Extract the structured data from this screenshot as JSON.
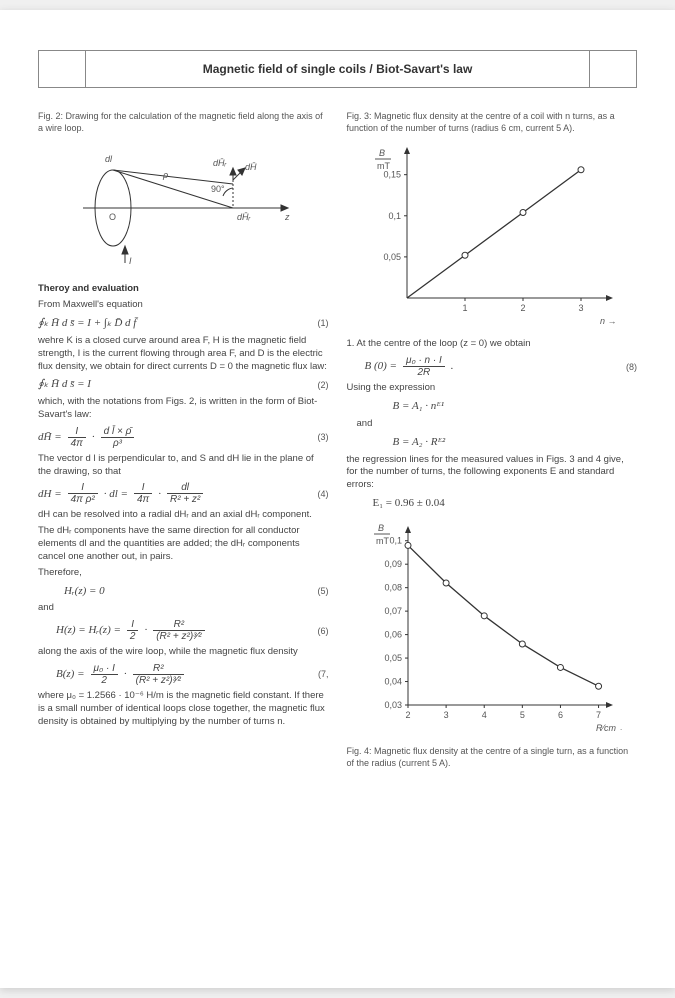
{
  "title": "Magnetic field of single coils / Biot-Savart's law",
  "left": {
    "fig2_caption": "Fig. 2: Drawing for the calculation of the magnetic field along the axis of a wire loop.",
    "fig2": {
      "labels": {
        "dl": "dl",
        "rho": "ρ",
        "dHr": "dH̄ᵣ",
        "dH": "dH̄",
        "ang": "90°",
        "dHz": "dH̄ᵣ",
        "O": "O",
        "z": "z",
        "I": "I"
      }
    },
    "section": "Theroy and evaluation",
    "p1": "From Maxwell's equation",
    "eq1": "∮ₖ H̄ d s̄ = I + ∫ₖ D̄ d f̄",
    "eq1n": "(1)",
    "p2": "wehre K is a closed curve around area F, H is the magnetic field strength, I is the current flowing through area F, and D is the electric flux density, we obtain for direct currents  D = 0 the magnetic flux law:",
    "eq2": "∮ₖ H̄ d s̄ = I",
    "eq2n": "(2)",
    "p3": "which, with the notations from Figs. 2, is written in the form of Biot-Savart's law:",
    "eq3_lhs": "dH̄ =",
    "eq3_num": "I",
    "eq3_den": "4π",
    "eq3_rhs_num": "d l̄ × ρ̄",
    "eq3_rhs_den": "ρ³",
    "eq3n": "(3)",
    "p4": "The vector d l is perpendicular to, and S and dH lie in the plane of the drawing, so that",
    "eq4_a": "dH =",
    "eq4_a_num": "I",
    "eq4_a_den": "4π ρ²",
    "eq4_mid": "· dl =",
    "eq4_b_num": "I",
    "eq4_b_den": "4π",
    "eq4_c_num": "dl",
    "eq4_c_den": "R² + z²",
    "eq4n": "(4)",
    "p5": "dH can be resolved into a radial dHᵣ and an axial dHᵣ component.",
    "p6": "The dHᵣ components have the same direction for all conductor elements dl and the quantities are added; the dHᵣ components cancel one another out, in pairs.",
    "p7": "Therefore,",
    "eq5": "Hᵣ(z) = 0",
    "eq5n": "(5)",
    "p8": "and",
    "eq6_lhs": "H(z) = Hᵣ(z) =",
    "eq6_a_num": "I",
    "eq6_a_den": "2",
    "eq6_b_num": "R²",
    "eq6_b_den": "(R² + z²)³⁄²",
    "eq6n": "(6)",
    "p9": "along the axis of the wire loop, while the magnetic flux density",
    "eq7_lhs": "B(z) =",
    "eq7_a_num": "μ₀ · I",
    "eq7_a_den": "2",
    "eq7_b_num": "R²",
    "eq7_b_den": "(R² + z²)³⁄²",
    "eq7n": "(7,",
    "p10": "where μ₀ = 1.2566 · 10⁻⁶ H/m is the magnetic field constant. If there is a small number of identical loops close together, the magnetic flux density is obtained by multiplying by the number of turns n."
  },
  "right": {
    "fig3_caption": "Fig. 3: Magnetic flux density at the centre of a coil with n turns, as a function of the number of turns (radius 6 cm, current 5 A).",
    "fig3": {
      "type": "line",
      "ylabel_num": "B",
      "ylabel_den": "mT",
      "yticks": [
        "0,15",
        "0,1",
        "0,05"
      ],
      "xticks": [
        "1",
        "2",
        "3"
      ],
      "xaxis_arrow_label": "n →",
      "points": [
        [
          0,
          0
        ],
        [
          1,
          0.052
        ],
        [
          2,
          0.104
        ],
        [
          3,
          0.156
        ]
      ],
      "ymax": 0.18,
      "xmax": 3.5,
      "line_color": "#333333",
      "marker_fill": "#ffffff",
      "marker_stroke": "#333333",
      "axis_color": "#333333",
      "bg": "#ffffff"
    },
    "p1": "1. At the centre of the loop (z = 0) we obtain",
    "eq8_lhs": "B (0) =",
    "eq8_num": "μ₀ · n · I",
    "eq8_den": "2R",
    "eq8n": "(8)",
    "p2": "Using the expression",
    "eq_ra": "B = A₁ · nᴱ¹",
    "p_and": "and",
    "eq_rb": "B = A₂ · Rᴱ²",
    "p3": "the regression lines for the measured values in Figs. 3 and 4 give, for the number of turns, the following exponents E and standard errors:",
    "e1": "E₁ = 0.96 ± 0.04",
    "fig4": {
      "type": "line",
      "ylabel_num": "B",
      "ylabel_den": "mT",
      "yticks": [
        "0,1",
        "0,09",
        "0,08",
        "0,07",
        "0,06",
        "0,05",
        "0,04",
        "0,03"
      ],
      "xticks": [
        "2",
        "3",
        "4",
        "5",
        "6",
        "7"
      ],
      "xaxis_arrow_label": "R⁄cm →",
      "points": [
        [
          2,
          0.098
        ],
        [
          3,
          0.082
        ],
        [
          4,
          0.068
        ],
        [
          5,
          0.056
        ],
        [
          6,
          0.046
        ],
        [
          7,
          0.038
        ]
      ],
      "ymin": 0.03,
      "ymax": 0.105,
      "xmin": 2,
      "xmax": 7.3,
      "line_color": "#333333",
      "marker_fill": "#ffffff",
      "marker_stroke": "#333333",
      "axis_color": "#333333",
      "bg": "#ffffff"
    },
    "fig4_caption": "Fig. 4: Magnetic flux density at the centre of a single turn, as a function of the radius (current 5 A)."
  }
}
